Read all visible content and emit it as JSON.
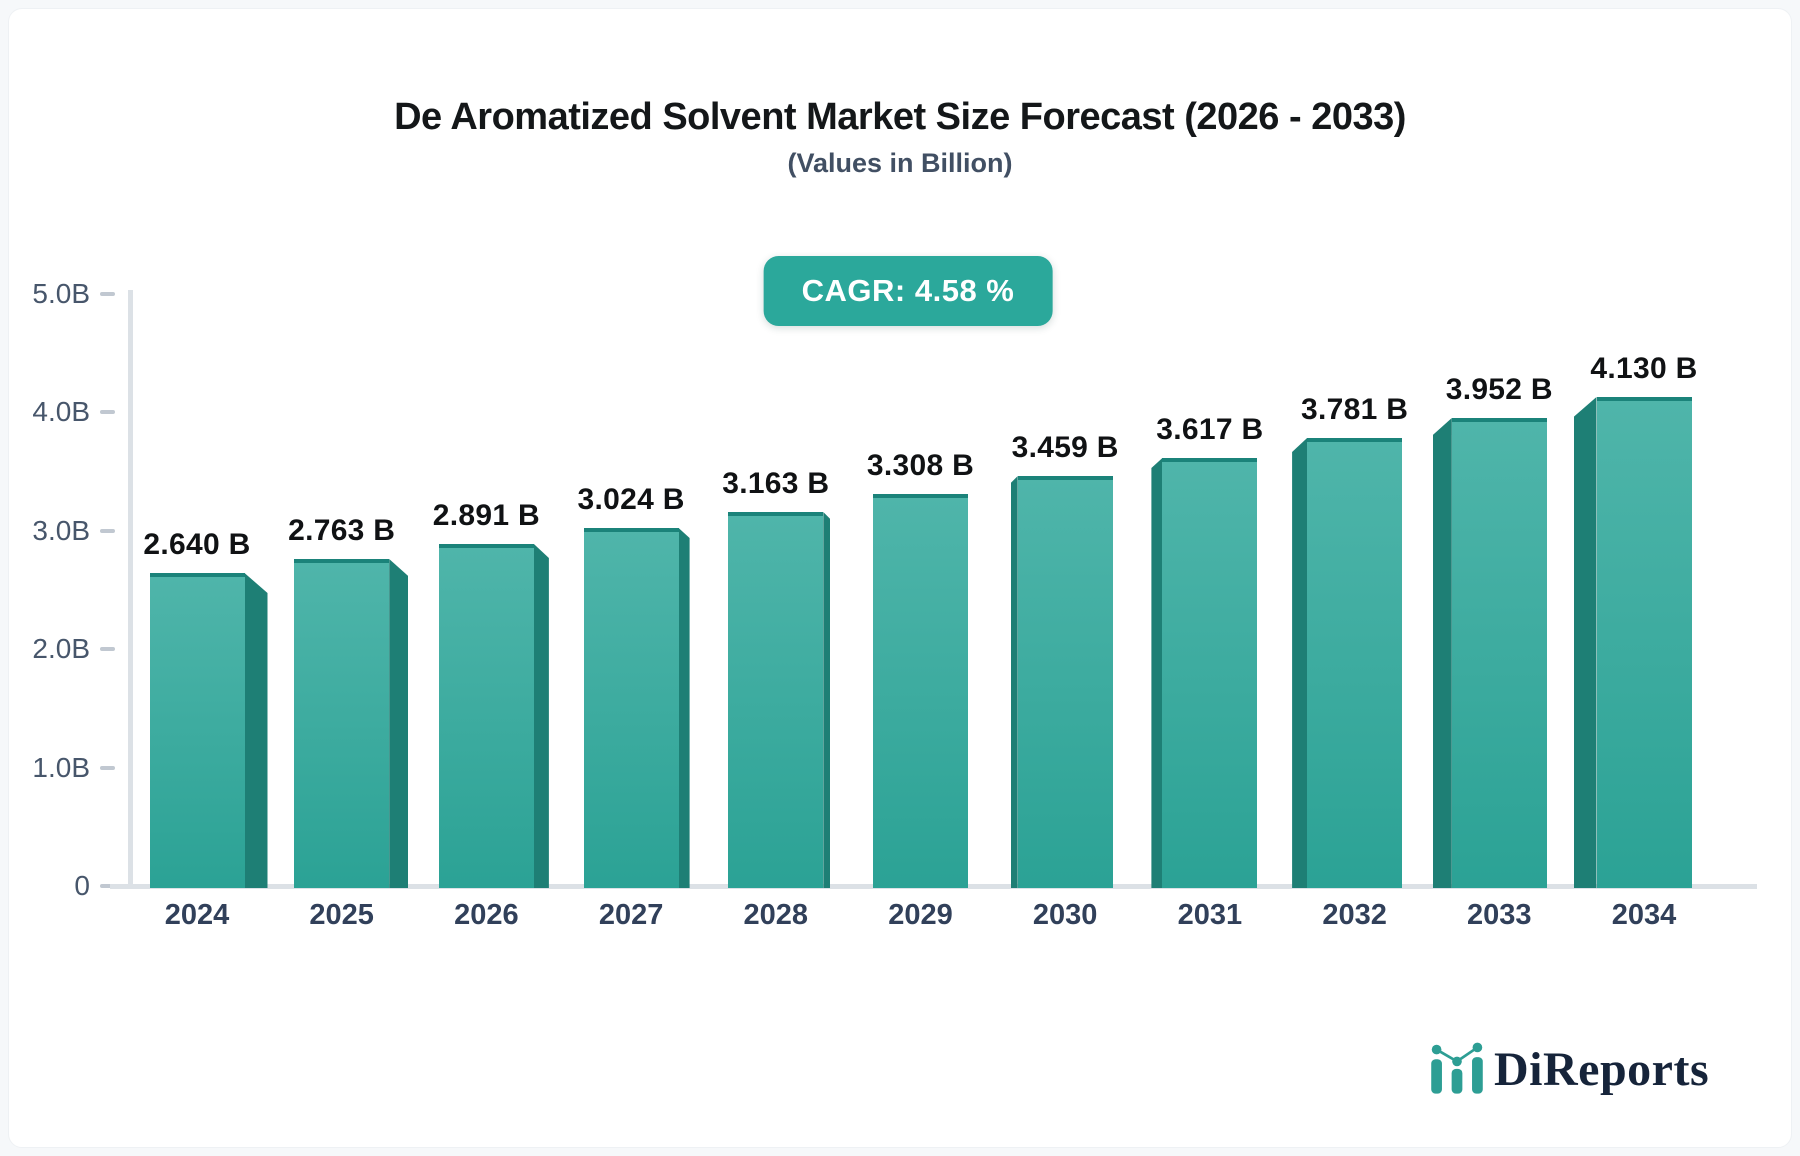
{
  "page": {
    "background": "#f6f8fa",
    "card_background": "#ffffff"
  },
  "chart_data": {
    "type": "bar",
    "title": "De Aromatized Solvent Market Size Forecast (2026 - 2033)",
    "subtitle": "(Values in Billion)",
    "cagr_label": "CAGR: 4.58 %",
    "categories": [
      "2024",
      "2025",
      "2026",
      "2027",
      "2028",
      "2029",
      "2030",
      "2031",
      "2032",
      "2033",
      "2034"
    ],
    "values": [
      2.64,
      2.763,
      2.891,
      3.024,
      3.163,
      3.308,
      3.459,
      3.617,
      3.781,
      3.952,
      4.13
    ],
    "value_labels": [
      "2.640 B",
      "2.763 B",
      "2.891 B",
      "3.024 B",
      "3.163 B",
      "3.308 B",
      "3.459 B",
      "3.617 B",
      "3.781 B",
      "3.952 B",
      "4.130 B"
    ],
    "xlabel": "",
    "ylabel": "",
    "ylim": [
      0,
      5
    ],
    "yticks": [
      {
        "value": 5,
        "label": "5.0B"
      },
      {
        "value": 4,
        "label": "4.0B"
      },
      {
        "value": 3,
        "label": "3.0B"
      },
      {
        "value": 2,
        "label": "2.0B"
      },
      {
        "value": 1,
        "label": "1.0B"
      },
      {
        "value": 0,
        "label": "0"
      }
    ],
    "grid": false,
    "legend": false,
    "colors": {
      "bar_face_top": "#4FB5AA",
      "bar_face_bottom": "#2BA295",
      "bar_side": "#1E7F75",
      "bar_top_edge": "#1B837A",
      "axis": "#DCE1E6",
      "tick": "#C1C8D1",
      "badge_bg": "#2BA89B",
      "badge_text": "#FFFFFF",
      "value_label": "#101214",
      "axis_label": "#47566B",
      "category_label": "#31405A"
    }
  },
  "logo": {
    "mark_icon": "bar-chart-logo-icon",
    "text": "DiReports"
  }
}
